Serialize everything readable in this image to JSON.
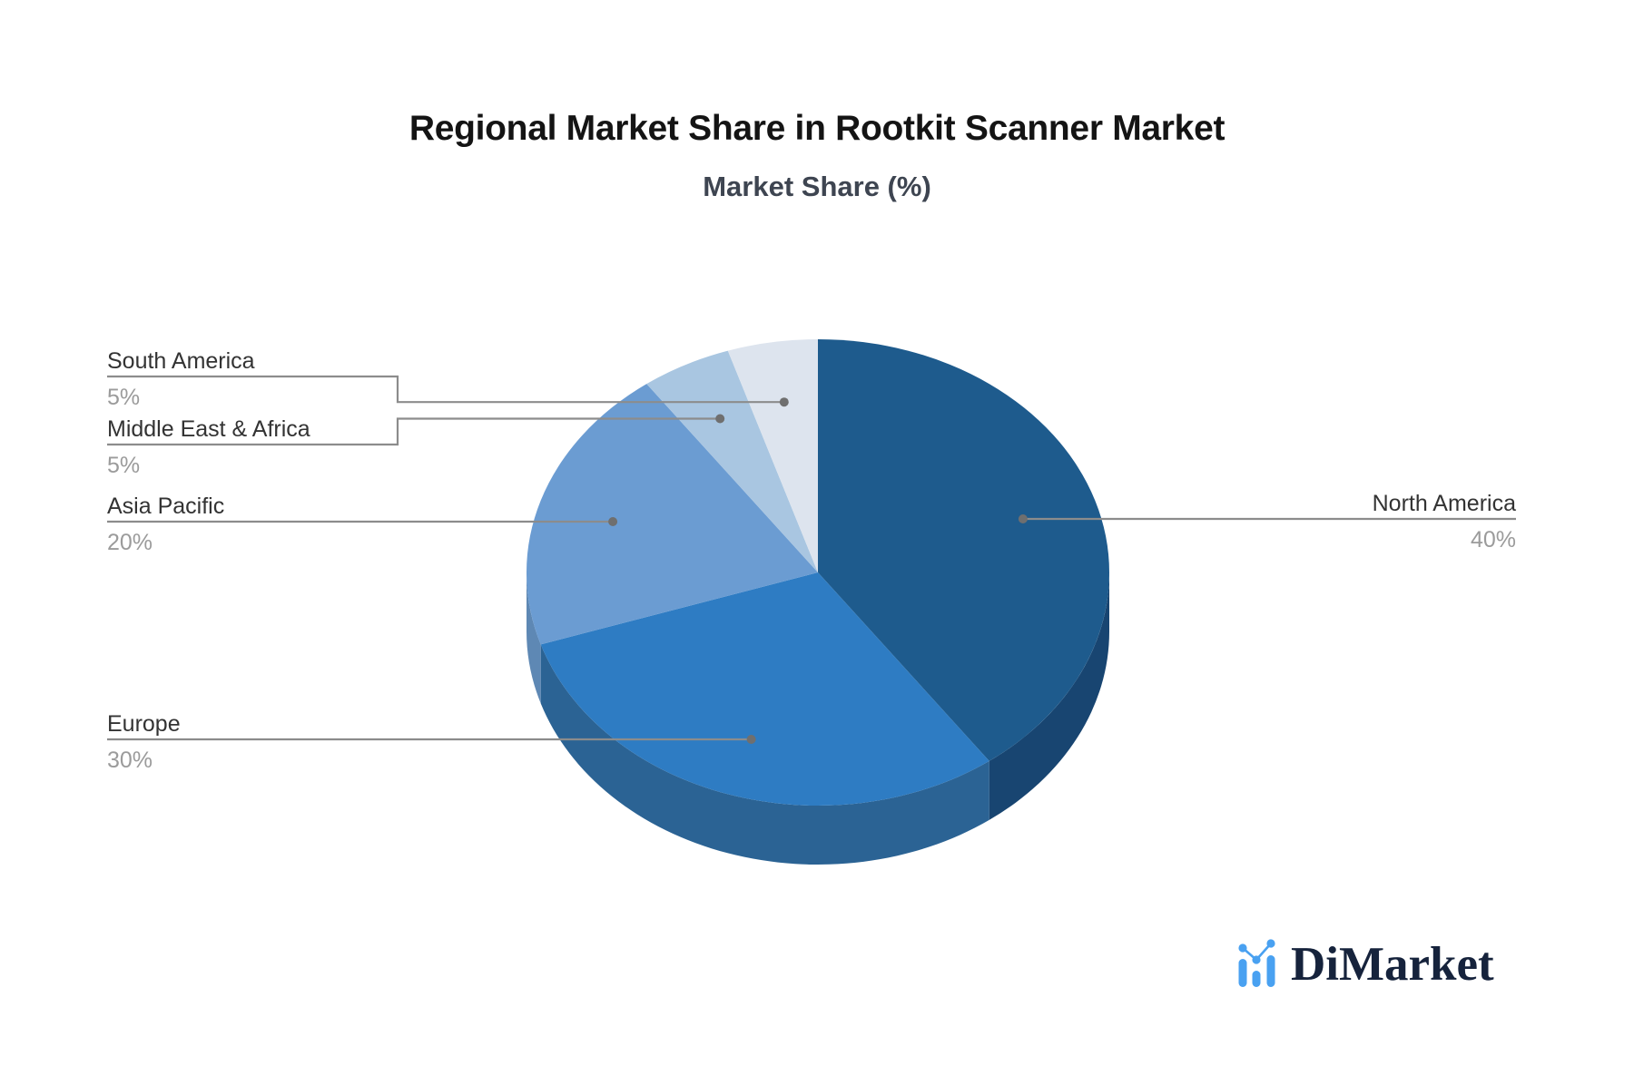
{
  "title": "Regional Market Share in Rootkit Scanner Market",
  "subtitle": "Market Share (%)",
  "logo": {
    "text": "DiMarket",
    "icon": "bar-chart-trend-icon",
    "icon_color": "#49a1f1",
    "text_color": "#16233c"
  },
  "styles": {
    "leader_line_color": "#8c8c8c",
    "leader_dot_color": "#6f6f6f",
    "label_color": "#333333",
    "value_color": "#9b9b9b",
    "background": "#ffffff"
  },
  "chart_data": {
    "type": "pie",
    "style": "3d",
    "title": "Regional Market Share in Rootkit Scanner Market",
    "subtitle": "Market Share (%)",
    "unit": "%",
    "start_angle_deg": 0,
    "direction": "clockwise",
    "legend_position": "callout-labels",
    "slices": [
      {
        "id": "north-america",
        "label": "North America",
        "value": 40,
        "pct": "40%",
        "color": "#1e5b8d",
        "side_color": "#184571"
      },
      {
        "id": "europe",
        "label": "Europe",
        "value": 30,
        "pct": "30%",
        "color": "#2e7cc3",
        "side_color": "#2b6394"
      },
      {
        "id": "asia-pacific",
        "label": "Asia Pacific",
        "value": 20,
        "pct": "20%",
        "color": "#6b9cd2",
        "side_color": "#5e88b4"
      },
      {
        "id": "middle-east-africa",
        "label": "Middle East & Africa",
        "value": 5,
        "pct": "5%",
        "color": "#a9c6e1",
        "side_color": "#8fa9c4"
      },
      {
        "id": "south-america",
        "label": "South America",
        "value": 5,
        "pct": "5%",
        "color": "#dde4ee",
        "side_color": "#b8c5d6"
      }
    ]
  }
}
